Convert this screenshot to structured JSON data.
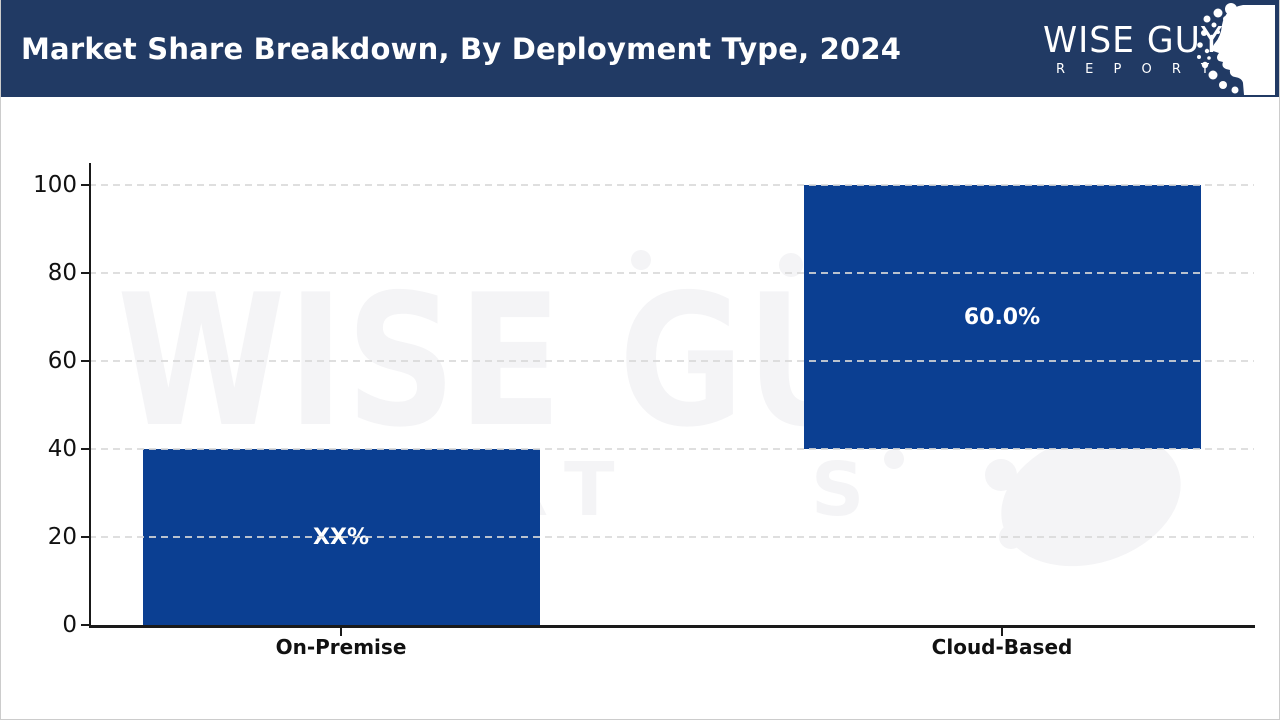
{
  "header": {
    "title": "Market Share Breakdown, By Deployment Type, 2024",
    "logo": {
      "line1": "WISE GUY",
      "line2": "R E P O R T S"
    }
  },
  "watermark": {
    "main": "WISE GUY",
    "letters": [
      "R",
      "T",
      "S"
    ]
  },
  "chart_data": {
    "type": "bar",
    "variant": "floating-waterfall",
    "title": "Market Share Breakdown, By Deployment Type, 2024",
    "categories": [
      "On-Premise",
      "Cloud-Based"
    ],
    "bars": [
      {
        "category": "On-Premise",
        "start": 0,
        "end": 40,
        "label": "XX%"
      },
      {
        "category": "Cloud-Based",
        "start": 40,
        "end": 100,
        "label": "60.0%"
      }
    ],
    "xlabel": "",
    "ylabel": "",
    "yticks": [
      0,
      20,
      40,
      60,
      80,
      100
    ],
    "ylim": [
      0,
      105
    ],
    "grid": "horizontal-dashed-over-bars",
    "legend": "none"
  },
  "colors": {
    "header_bg": "#213a64",
    "bar": "#0b3f92",
    "bar_label": "#ffffff",
    "grid": "#d9d9d9",
    "axis": "#1a1a1a",
    "watermark": "#f4f4f6"
  }
}
